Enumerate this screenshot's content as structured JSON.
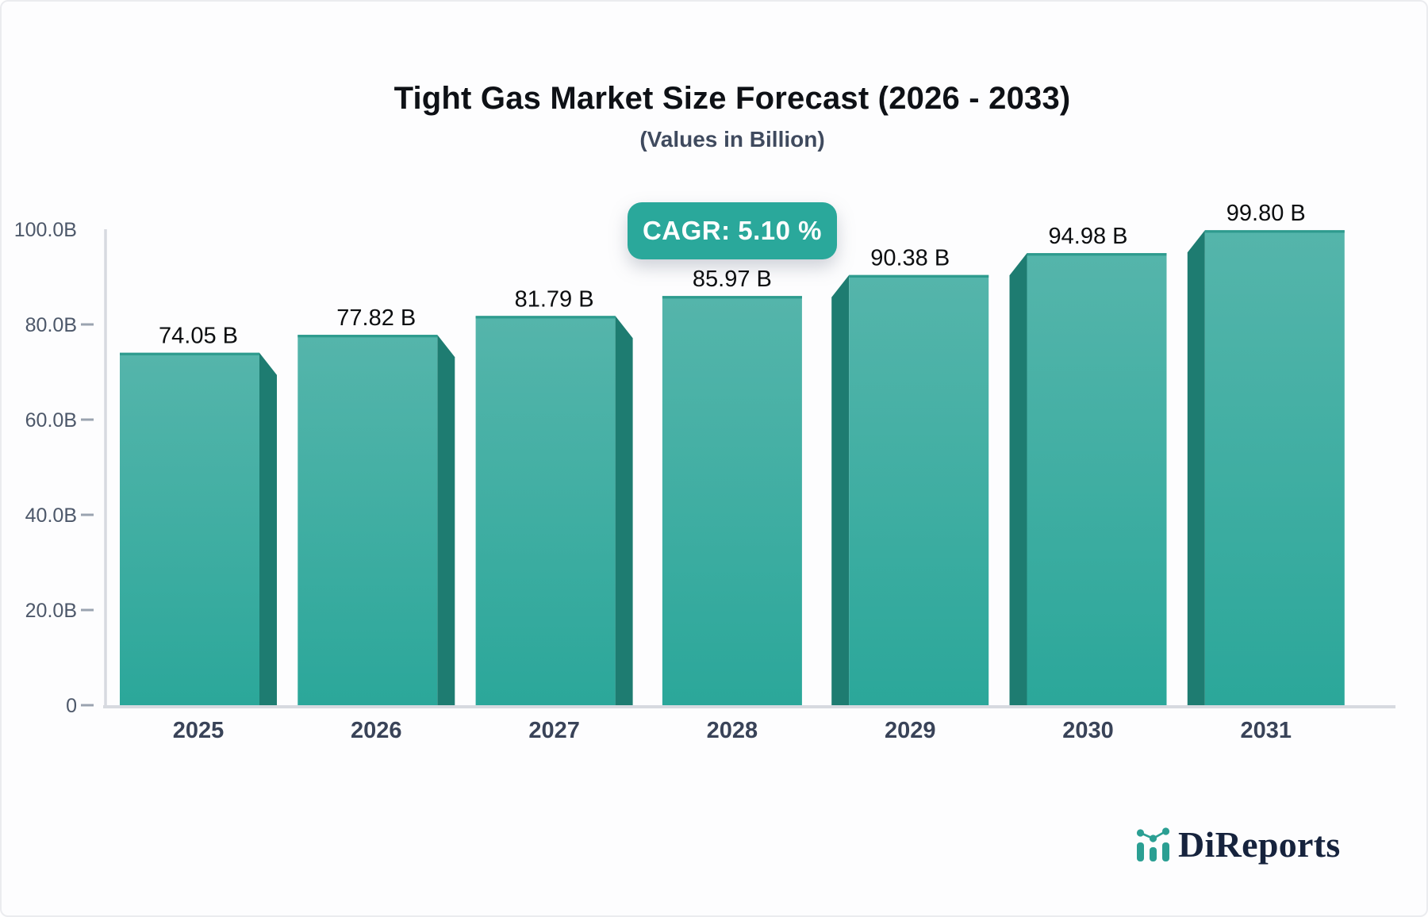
{
  "header": {
    "cagr_label": "CAGR: 5.10 %"
  },
  "chart_data": {
    "type": "bar",
    "title": "Tight Gas Market Size Forecast (2026 - 2033)",
    "subtitle": "(Values in Billion)",
    "cagr_label": "CAGR: 5.10 %",
    "categories": [
      "2025",
      "2026",
      "2027",
      "2028",
      "2029",
      "2030",
      "2031"
    ],
    "values": [
      74.05,
      77.82,
      81.79,
      85.97,
      90.38,
      94.98,
      99.8
    ],
    "value_labels": [
      "74.05 B",
      "77.82 B",
      "81.79 B",
      "85.97 B",
      "90.38 B",
      "94.98 B",
      "99.80 B"
    ],
    "unit": "Billion",
    "ylim": [
      0,
      100
    ],
    "yticks": [
      {
        "value": 0,
        "label": "0"
      },
      {
        "value": 20,
        "label": "20.0B"
      },
      {
        "value": 40,
        "label": "40.0B"
      },
      {
        "value": 60,
        "label": "60.0B"
      },
      {
        "value": 80,
        "label": "80.0B"
      },
      {
        "value": 100,
        "label": "100.0B"
      }
    ],
    "grid": false,
    "legend": false,
    "bar_style": "3d-extruded-toward-center"
  },
  "colors": {
    "accent": "#2aa89b",
    "bar_top": "#55b5ab",
    "bar_bottom": "#2ba79a",
    "bar_side": "#1e7c71",
    "bar_top_edge": "#2e9b8e",
    "axis_line": "#d7dae0",
    "tick_dash": "#9aa3b0",
    "tick_label": "#4d586a",
    "category_label": "#394358",
    "value_label": "#0c0e10",
    "badge_text": "#ffffff",
    "logo_navy": "#16233d",
    "logo_teal": "#2b9f93"
  },
  "logo": {
    "text": "DiReports",
    "icon": "mini-bar-line-chart-icon"
  }
}
